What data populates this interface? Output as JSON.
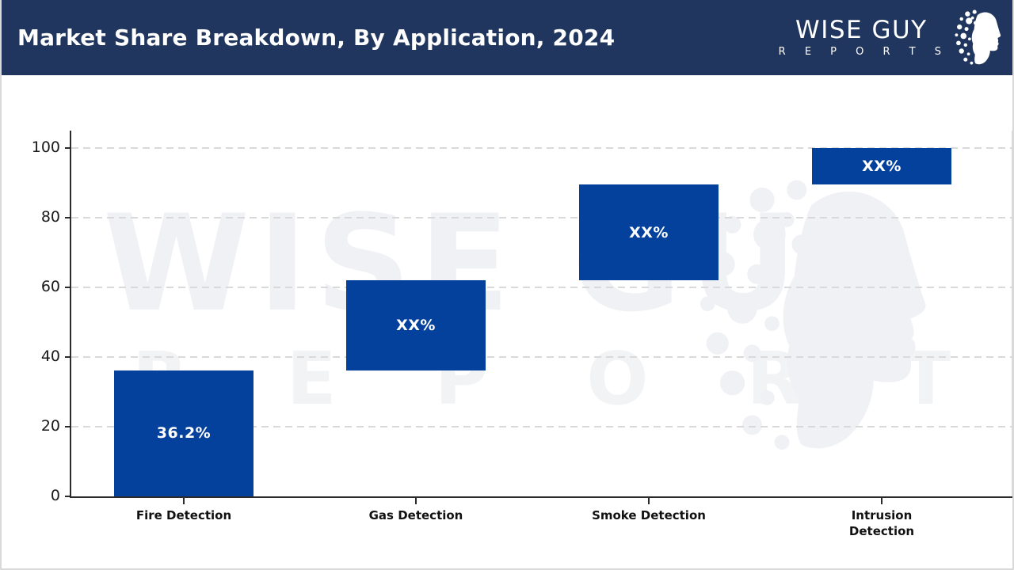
{
  "header": {
    "title": "Market Share Breakdown, By Application, 2024",
    "logo": {
      "line1": "WISE GUY",
      "line2": "R E P O R T S"
    }
  },
  "watermark": {
    "line1": "WISE GU",
    "line2": "R E P O R T S"
  },
  "chart_data": {
    "type": "bar",
    "variant": "waterfall",
    "title": "Market Share Breakdown, By Application, 2024",
    "categories": [
      "Fire Detection",
      "Gas Detection",
      "Smoke Detection",
      "Intrusion\nDetection"
    ],
    "segments": [
      {
        "category": "Fire Detection",
        "start": 0,
        "end": 36.2,
        "label": "36.2%"
      },
      {
        "category": "Gas Detection",
        "start": 36.2,
        "end": 62,
        "label": "XX%"
      },
      {
        "category": "Smoke Detection",
        "start": 62,
        "end": 89.5,
        "label": "XX%"
      },
      {
        "category": "Intrusion Detection",
        "start": 89.5,
        "end": 100,
        "label": "XX%"
      }
    ],
    "ylabel": "",
    "xlabel": "",
    "yticks": [
      0,
      20,
      40,
      60,
      80,
      100
    ],
    "ylim": [
      0,
      105
    ],
    "grid": "horizontal-dashed",
    "legend": false,
    "bar_color": "#04419C",
    "bar_label_color": "#FFFFFF",
    "axis_color": "#2B2B2B",
    "grid_color": "#D9D9D9",
    "header_color": "#21365F",
    "watermark_color": "#F0F1F4"
  }
}
